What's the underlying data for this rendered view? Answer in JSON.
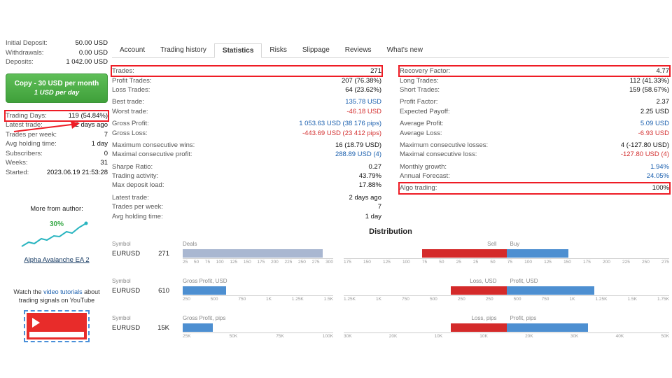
{
  "accent": {
    "blue": "#1a5fae",
    "red": "#d32f2f",
    "annotation_red": "#ee1c25",
    "bar_blue": "#4d8fd1",
    "bar_red": "#d42a2a",
    "bar_light": "#a9b7d1",
    "button_green": "#4aad45"
  },
  "sidebar": {
    "account_rows": [
      {
        "label": "Initial Deposit:",
        "value": "50.00 USD"
      },
      {
        "label": "Withdrawals:",
        "value": "0.00 USD"
      },
      {
        "label": "Deposits:",
        "value": "1 042.00 USD"
      }
    ],
    "copy_button": {
      "line1": "Copy - 30 USD per month",
      "line2": "1 USD per day"
    },
    "signal_rows": [
      {
        "label": "Trading Days:",
        "value": "119 (54.84%)",
        "boxed": true
      },
      {
        "label": "Latest trade:",
        "value": "2 days ago"
      },
      {
        "label": "Trades per week:",
        "value": "7"
      },
      {
        "label": "Avg holding time:",
        "value": "1 day"
      },
      {
        "label": "Subscribers:",
        "value": "0"
      },
      {
        "label": "Weeks:",
        "value": "31"
      },
      {
        "label": "Started:",
        "value": "2023.06.19 21:53:28"
      }
    ],
    "more_from_author": "More from author:",
    "mini_chart_label": "30%",
    "author_link": "Alpha Avalanche EA 2",
    "video_note": {
      "pre": "Watch the ",
      "link": "video tutorials",
      "post": " about",
      "line2": "trading signals on YouTube"
    }
  },
  "tabs": [
    {
      "label": "Account",
      "active": false
    },
    {
      "label": "Trading history",
      "active": false
    },
    {
      "label": "Statistics",
      "active": true
    },
    {
      "label": "Risks",
      "active": false
    },
    {
      "label": "Slippage",
      "active": false
    },
    {
      "label": "Reviews",
      "active": false
    },
    {
      "label": "What's new",
      "active": false
    }
  ],
  "stats_left": [
    {
      "label": "Trades:",
      "value": "271",
      "boxed": true
    },
    {
      "label": "Profit Trades:",
      "value": "207 (76.38%)"
    },
    {
      "label": "Loss Trades:",
      "value": "64 (23.62%)"
    },
    {
      "label": "Best trade:",
      "value": "135.78 USD",
      "color": "blue",
      "gap": true
    },
    {
      "label": "Worst trade:",
      "value": "-46.18 USD",
      "color": "red"
    },
    {
      "label": "Gross Profit:",
      "value": "1 053.63 USD (38 176 pips)",
      "color": "blue",
      "gap": true
    },
    {
      "label": "Gross Loss:",
      "value": "-443.69 USD (23 412 pips)",
      "color": "red"
    },
    {
      "label": "Maximum consecutive wins:",
      "value": "16 (18.79 USD)",
      "gap": true
    },
    {
      "label": "Maximal consecutive profit:",
      "value": "288.89 USD (4)",
      "color": "blue"
    },
    {
      "label": "Sharpe Ratio:",
      "value": "0.27",
      "gap": true
    },
    {
      "label": "Trading activity:",
      "value": "43.79%"
    },
    {
      "label": "Max deposit load:",
      "value": "17.88%"
    },
    {
      "label": "Latest trade:",
      "value": "2 days ago",
      "gap": true
    },
    {
      "label": "Trades per week:",
      "value": "7"
    },
    {
      "label": "Avg holding time:",
      "value": "1 day"
    }
  ],
  "stats_right": [
    {
      "label": "Recovery Factor:",
      "value": "4.77",
      "boxed": true
    },
    {
      "label": "Long Trades:",
      "value": "112 (41.33%)"
    },
    {
      "label": "Short Trades:",
      "value": "159 (58.67%)"
    },
    {
      "label": "Profit Factor:",
      "value": "2.37",
      "gap": true
    },
    {
      "label": "Expected Payoff:",
      "value": "2.25 USD"
    },
    {
      "label": "Average Profit:",
      "value": "5.09 USD",
      "color": "blue",
      "gap": true
    },
    {
      "label": "Average Loss:",
      "value": "-6.93 USD",
      "color": "red"
    },
    {
      "label": "Maximum consecutive losses:",
      "value": "4 (-127.80 USD)",
      "gap": true
    },
    {
      "label": "Maximal consecutive loss:",
      "value": "-127.80 USD (4)",
      "color": "red"
    },
    {
      "label": "Monthly growth:",
      "value": "1.94%",
      "color": "blue",
      "gap": true
    },
    {
      "label": "Annual Forecast:",
      "value": "24.05%",
      "color": "blue"
    },
    {
      "label": "Algo trading:",
      "value": "100%",
      "boxed": true,
      "gap": true
    }
  ],
  "distribution": {
    "title": "Distribution",
    "symbol_header": "Symbol",
    "rows": [
      {
        "symbol": "EURUSD",
        "total": "271",
        "left": {
          "title": "Deals",
          "bar_pct": 93,
          "bar_color": "#a9b7d1",
          "ticks": [
            "25",
            "50",
            "75",
            "100",
            "125",
            "150",
            "175",
            "200",
            "225",
            "250",
            "275",
            "300"
          ]
        },
        "right": {
          "title_sell": "Sell",
          "title_buy": "Buy",
          "sell_pct": 52,
          "buy_pct": 38,
          "ticks": [
            "175",
            "150",
            "125",
            "100",
            "75",
            "50",
            "25",
            "25",
            "50",
            "75",
            "100",
            "125",
            "150",
            "175",
            "200",
            "225",
            "250",
            "275"
          ]
        }
      },
      {
        "symbol": "EURUSD",
        "total": "610",
        "left": {
          "title": "Gross Profit, USD",
          "bar_pct": 29,
          "bar_color": "#4d8fd1",
          "ticks": [
            "250",
            "500",
            "750",
            "1K",
            "1.25K",
            "1.5K"
          ]
        },
        "right": {
          "title_sell": "Loss, USD",
          "title_buy": "Profit, USD",
          "sell_pct": 34,
          "buy_pct": 54,
          "ticks": [
            "1.25K",
            "1K",
            "750",
            "500",
            "250",
            "250",
            "500",
            "750",
            "1K",
            "1.25K",
            "1.5K",
            "1.75K"
          ]
        }
      },
      {
        "symbol": "EURUSD",
        "total": "15K",
        "left": {
          "title": "Gross Profit, pips",
          "bar_pct": 20,
          "bar_color": "#4d8fd1",
          "ticks": [
            "25K",
            "50K",
            "75K",
            "100K"
          ]
        },
        "right": {
          "title_sell": "Loss, pips",
          "title_buy": "Profit, pips",
          "sell_pct": 34,
          "buy_pct": 50,
          "ticks": [
            "30K",
            "20K",
            "10K",
            "10K",
            "20K",
            "30K",
            "40K",
            "50K"
          ]
        }
      }
    ]
  }
}
